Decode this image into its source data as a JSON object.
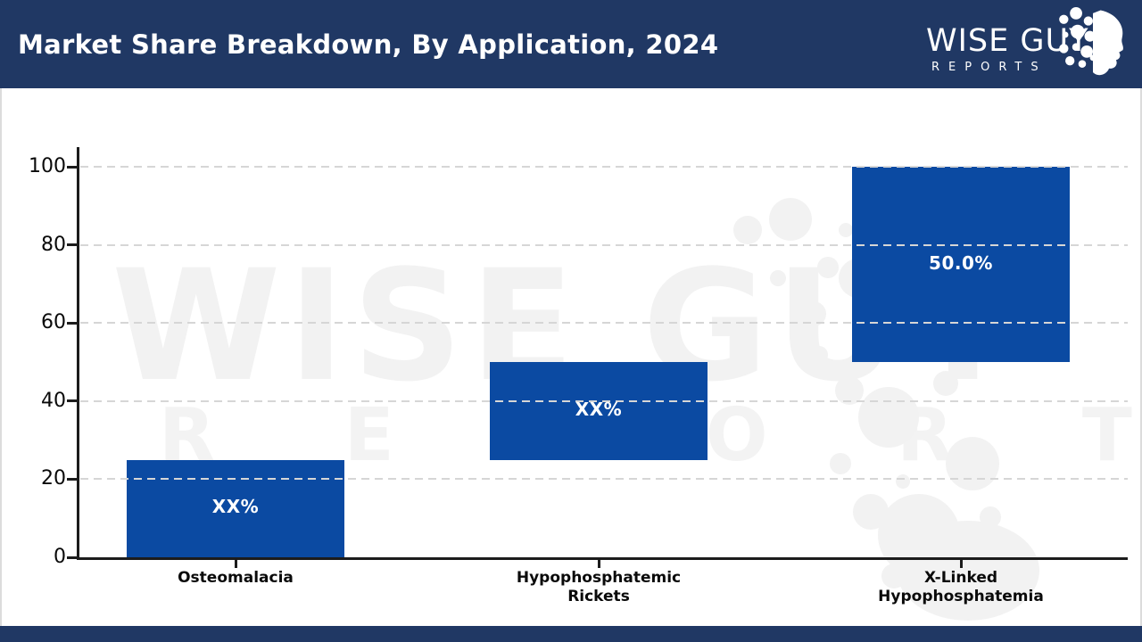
{
  "header": {
    "title": "Market Share Breakdown, By Application, 2024",
    "logo": {
      "primary": "WISE GUY",
      "secondary": "REPORTS"
    }
  },
  "watermark": {
    "primary": "WISE GUY",
    "secondary": "R E P O R T S"
  },
  "footer": {
    "visible": true
  },
  "chart_data": {
    "type": "bar",
    "subtype": "floating-segment share breakdown (waterfall style)",
    "title": "Market Share Breakdown, By Application, 2024",
    "categories": [
      [
        "Osteomalacia"
      ],
      [
        "Hypophosphatemic",
        "Rickets"
      ],
      [
        "X-Linked",
        "Hypophosphatemia"
      ]
    ],
    "bars": [
      {
        "category": "Osteomalacia",
        "from": 0,
        "to": 25,
        "label": "XX%"
      },
      {
        "category": "Hypophosphatemic Rickets",
        "from": 25,
        "to": 50,
        "label": "XX%"
      },
      {
        "category": "X-Linked Hypophosphatemia",
        "from": 50,
        "to": 100,
        "label": "50.0%"
      }
    ],
    "yticks": [
      0,
      20,
      40,
      60,
      80,
      100
    ],
    "ylim": [
      0,
      105
    ],
    "xlabel": "",
    "ylabel": "",
    "legend": "none",
    "grid": "horizontal-dashed",
    "colors": {
      "bar": "#0b4aa2",
      "header_bg": "#203864",
      "grid": "#d6d6d6",
      "axis": "#1c1c1c",
      "watermark": "#f2f2f2"
    }
  }
}
